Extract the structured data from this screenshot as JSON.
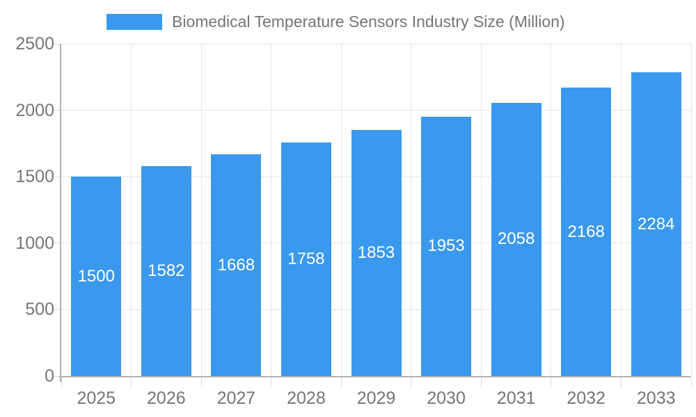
{
  "legend": {
    "label": "Biomedical Temperature Sensors Industry Size (Million)"
  },
  "chart_data": {
    "type": "bar",
    "title": "Biomedical Temperature Sensors Industry Size (Million)",
    "series_name": "Biomedical Temperature Sensors Industry Size (Million)",
    "categories": [
      "2025",
      "2026",
      "2027",
      "2028",
      "2029",
      "2030",
      "2031",
      "2032",
      "2033"
    ],
    "values": [
      1500,
      1582,
      1668,
      1758,
      1853,
      1953,
      2058,
      2168,
      2284
    ],
    "xlabel": "",
    "ylabel": "",
    "ylim": [
      0,
      2500
    ],
    "y_ticks": [
      0,
      500,
      1000,
      1500,
      2000,
      2500
    ],
    "grid": true,
    "legend_position": "top",
    "bar_labels_inside": true,
    "colors": {
      "bar": "#3A99EC",
      "bar_label": "#ffffff",
      "axis_text": "#757575",
      "gridline": "#e6e6e6",
      "axis_line": "#b3b3b3",
      "tick": "#d9d9d9",
      "background": "#ffffff"
    }
  }
}
